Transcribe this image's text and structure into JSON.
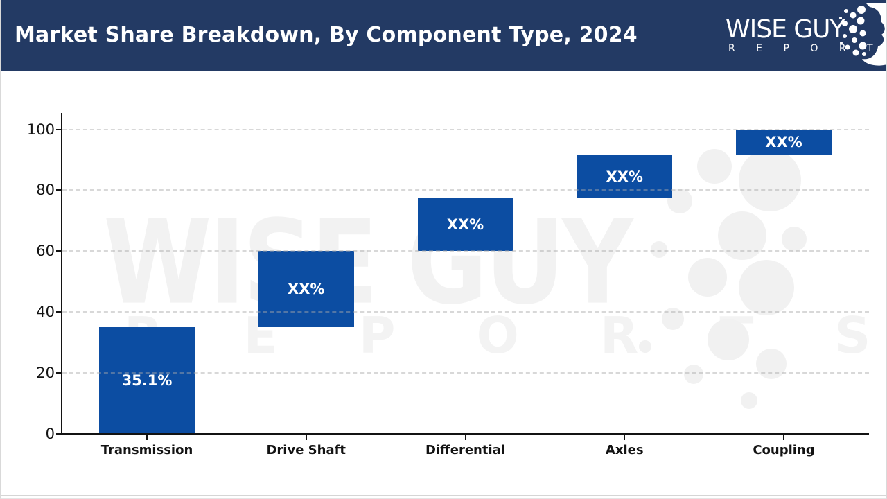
{
  "header": {
    "title": "Market Share Breakdown, By Component Type, 2024",
    "logo": {
      "line1": "WISE GUY",
      "line2": "R E P O R T S"
    }
  },
  "watermark": {
    "line1": "WISE GUY",
    "line2": "R E P O R T S"
  },
  "chart_data": {
    "type": "bar",
    "subtype": "waterfall (cumulative market share, stacked-step bars)",
    "title": "Market Share Breakdown, By Component Type, 2024",
    "categories": [
      "Transmission",
      "Drive Shaft",
      "Differential",
      "Axles",
      "Coupling"
    ],
    "segments": [
      {
        "category": "Transmission",
        "start": 0,
        "end": 35.1,
        "value": 35.1,
        "label": "35.1%"
      },
      {
        "category": "Drive Shaft",
        "start": 35.1,
        "end": 60.0,
        "value": 24.9,
        "label": "XX%"
      },
      {
        "category": "Differential",
        "start": 60.0,
        "end": 77.3,
        "value": 17.3,
        "label": "XX%"
      },
      {
        "category": "Axles",
        "start": 77.3,
        "end": 91.5,
        "value": 14.2,
        "label": "XX%"
      },
      {
        "category": "Coupling",
        "start": 91.5,
        "end": 100.0,
        "value": 8.5,
        "label": "XX%"
      }
    ],
    "xlabel": "",
    "ylabel": "",
    "yticks": [
      0,
      20,
      40,
      60,
      80,
      100
    ],
    "ylim": [
      0,
      105
    ],
    "grid": "horizontal dashed gridlines at y ticks, drawn over bars",
    "legend": "none",
    "bar_color": "#0c4da2",
    "label_color": "#ffffff",
    "axis_color": "#131313"
  }
}
